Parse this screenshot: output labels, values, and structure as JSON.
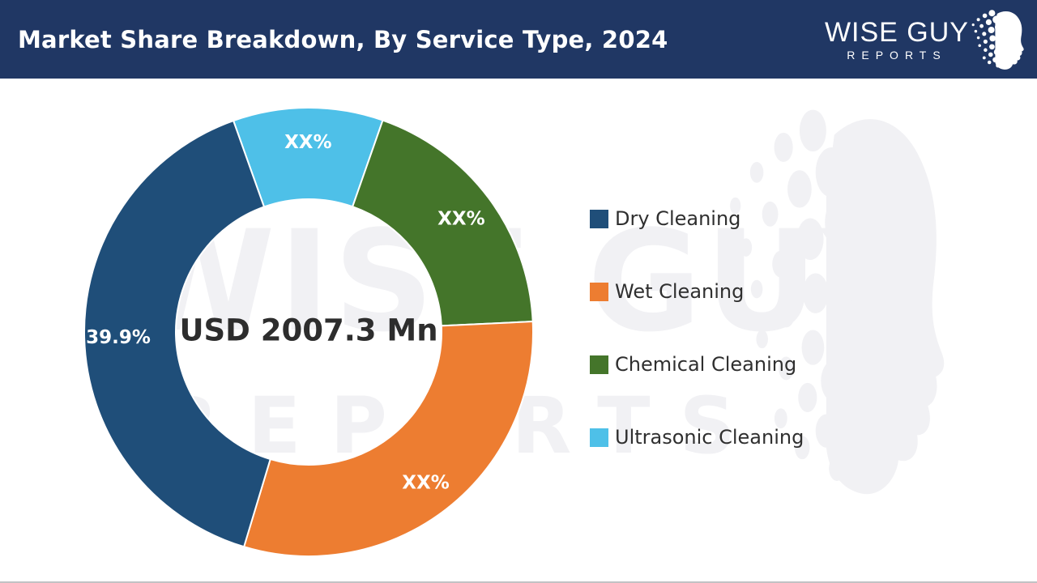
{
  "header": {
    "title": "Market Share Breakdown, By Service Type, 2024",
    "logo": {
      "wordmark": "WISE GUY",
      "subtext": "REPORTS"
    }
  },
  "watermark": {
    "line1": "WISE GUY",
    "line2": "REPORTS"
  },
  "chart_data": {
    "type": "donut",
    "title": "Market Share Breakdown, By Service Type, 2024",
    "center_label": "USD 2007.3 Mn",
    "start_angle_deg": -19.6,
    "draw_order_clockwise": [
      "Ultrasonic Cleaning",
      "Chemical Cleaning",
      "Wet Cleaning",
      "Dry Cleaning"
    ],
    "legend_position": "right",
    "series": [
      {
        "name": "Dry Cleaning",
        "value_pct": 39.9,
        "label": "39.9%",
        "color": "#1F4E79"
      },
      {
        "name": "Wet Cleaning",
        "value_pct": 30.4,
        "label": "XX%",
        "color": "#ED7D31"
      },
      {
        "name": "Chemical Cleaning",
        "value_pct": 18.9,
        "label": "XX%",
        "color": "#44752A"
      },
      {
        "name": "Ultrasonic Cleaning",
        "value_pct": 10.8,
        "label": "XX%",
        "color": "#4EC0E8"
      }
    ]
  },
  "colors": {
    "header_bg": "#203764",
    "center_text": "#2D2D2D",
    "watermark": "#F1F1F4",
    "slice_label_text": "#FFFFFF"
  }
}
